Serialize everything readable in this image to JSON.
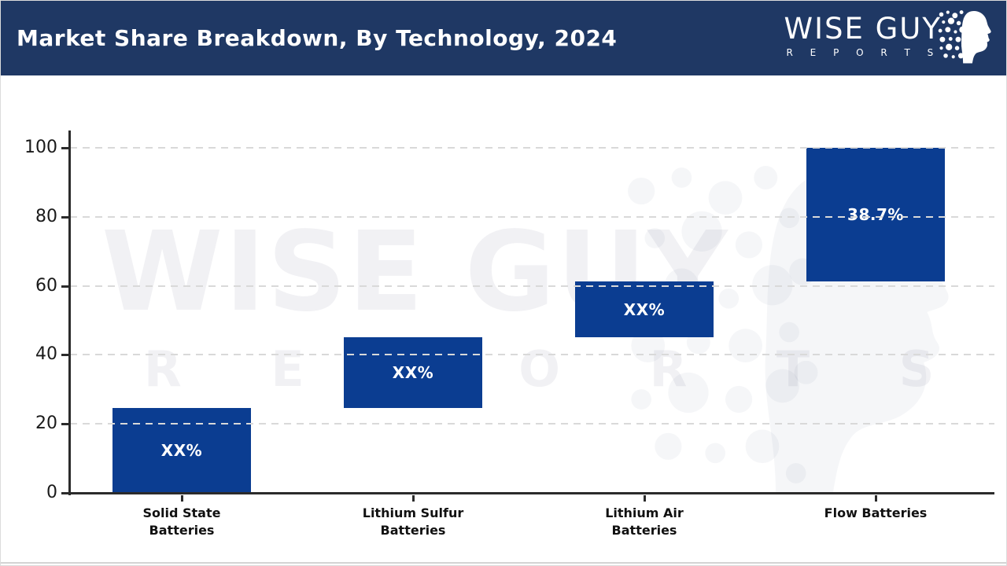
{
  "header": {
    "title": "Market Share Breakdown, By Technology, 2024",
    "logo": {
      "wordmark": "WISE GUY",
      "subtext": "R E P O R T S"
    }
  },
  "watermark": {
    "wordmark": "WISE GUY",
    "subtext": "R E P O R T S"
  },
  "chart_data": {
    "type": "bar",
    "subtype": "floating-waterfall",
    "title": "Market Share Breakdown, By Technology, 2024",
    "categories": [
      "Solid State Batteries",
      "Lithium Sulfur Batteries",
      "Lithium Air Batteries",
      "Flow Batteries"
    ],
    "bars": [
      {
        "category_lines": [
          "Solid State",
          "Batteries"
        ],
        "start": 0,
        "end": 24.5,
        "label": "XX%"
      },
      {
        "category_lines": [
          "Lithium Sulfur",
          "Batteries"
        ],
        "start": 24.5,
        "end": 45.0,
        "label": "XX%"
      },
      {
        "category_lines": [
          "Lithium Air",
          "Batteries"
        ],
        "start": 45.0,
        "end": 61.3,
        "label": "XX%"
      },
      {
        "category_lines": [
          "Flow Batteries"
        ],
        "start": 61.3,
        "end": 100,
        "label": "38.7%"
      }
    ],
    "yticks": [
      0,
      20,
      40,
      60,
      80,
      100
    ],
    "ylim": [
      0,
      105
    ],
    "xlabel": "",
    "ylabel": "",
    "legend": "none",
    "grid": "horizontal-dashed",
    "colors": {
      "bar": "#0b3d91",
      "bar_label": "#ffffff",
      "axis": "#2b2b2b",
      "tick_label": "#1a1a1a",
      "gridline": "#d9d9d9",
      "header_bg": "#1f3864",
      "watermark": "#f1f1f4"
    }
  }
}
